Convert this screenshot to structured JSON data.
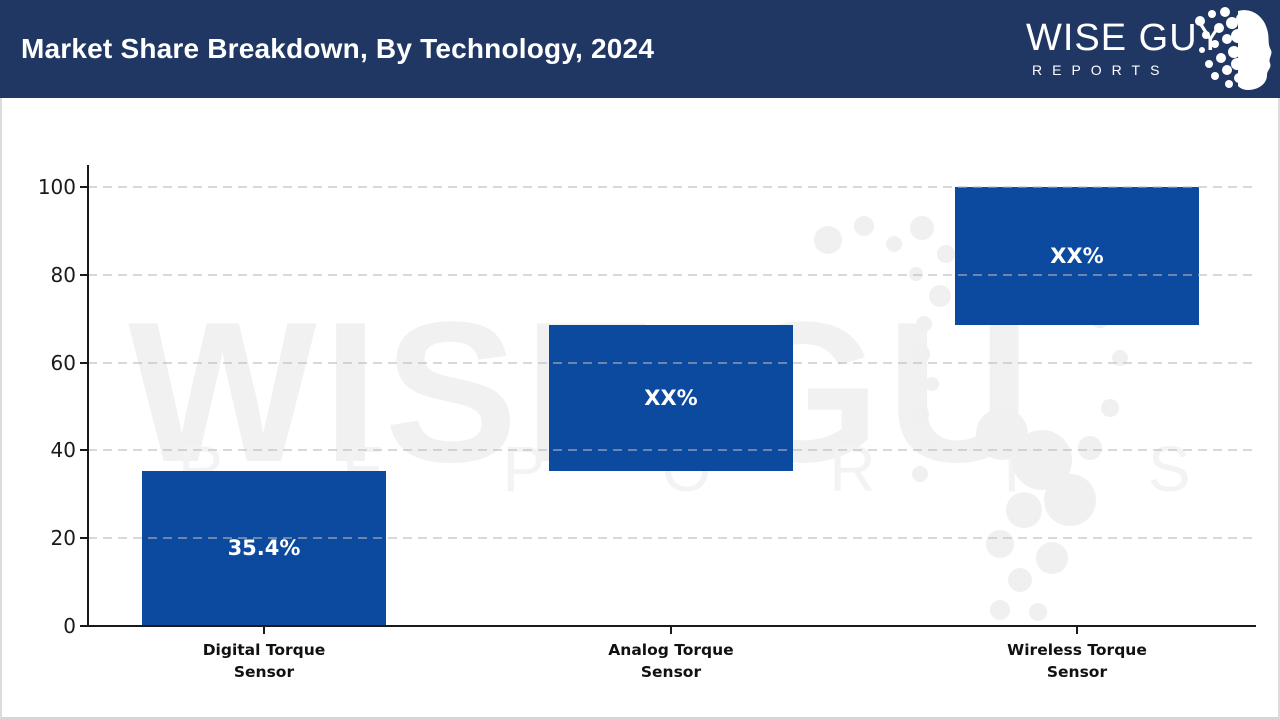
{
  "header": {
    "title": "Market Share Breakdown, By Technology, 2024",
    "logo": {
      "line1": "WISE GUY",
      "line2": "REPORTS"
    }
  },
  "watermark": {
    "line1": "WISE GU",
    "line2": "R E P O R T S"
  },
  "colors": {
    "header_navy": "#203764",
    "bar_blue": "#0c4aa0",
    "gridline_gray": "#e3e3e3",
    "axis_black": "#1a1a1a",
    "watermark_gray": "#f1f1f1"
  },
  "chart_data": {
    "type": "bar",
    "subtype": "floating-waterfall",
    "title": "Market Share Breakdown, By Technology, 2024",
    "categories": [
      "Digital Torque Sensor",
      "Analog Torque Sensor",
      "Wireless Torque Sensor"
    ],
    "category_lines": [
      [
        "Digital Torque",
        "Sensor"
      ],
      [
        "Analog Torque",
        "Sensor"
      ],
      [
        "Wireless Torque",
        "Sensor"
      ]
    ],
    "segments": [
      {
        "category": "Digital Torque Sensor",
        "from": 0,
        "to": 35.4,
        "label": "35.4%"
      },
      {
        "category": "Analog Torque Sensor",
        "from": 35.4,
        "to": 68.6,
        "label": "XX%"
      },
      {
        "category": "Wireless Torque Sensor",
        "from": 68.6,
        "to": 100,
        "label": "XX%"
      }
    ],
    "yticks": [
      0,
      20,
      40,
      60,
      80,
      100
    ],
    "ylim": [
      0,
      105
    ],
    "xlabel": "",
    "ylabel": "",
    "grid": "dashed-horizontal",
    "legend": "none",
    "bar_color": "#0c4aa0",
    "bar_label_color": "#ffffff"
  }
}
